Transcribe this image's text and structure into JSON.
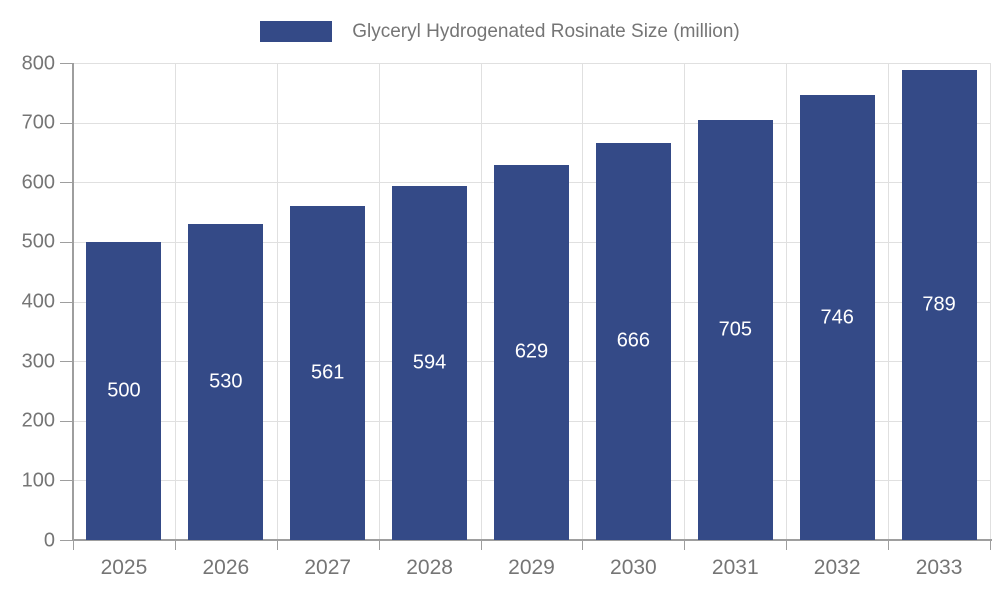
{
  "legend": {
    "label": "Glyceryl Hydrogenated Rosinate Size (million)"
  },
  "chart_data": {
    "type": "bar",
    "categories": [
      "2025",
      "2026",
      "2027",
      "2028",
      "2029",
      "2030",
      "2031",
      "2032",
      "2033"
    ],
    "values": [
      500,
      530,
      561,
      594,
      629,
      666,
      705,
      746,
      789
    ],
    "title": "Glyceryl Hydrogenated Rosinate Size (million)",
    "xlabel": "",
    "ylabel": "",
    "ylim": [
      0,
      800
    ],
    "ytick_step": 100,
    "yticks": [
      0,
      100,
      200,
      300,
      400,
      500,
      600,
      700,
      800
    ],
    "grid": true,
    "legend_position": "top-center",
    "value_labels": "inside-center",
    "colors": {
      "bar": "#344a87",
      "value_label": "#ffffff",
      "axis_text": "#757575",
      "gridline": "#e0e0e0",
      "axis_line": "#9e9e9e",
      "background": "#ffffff"
    }
  }
}
